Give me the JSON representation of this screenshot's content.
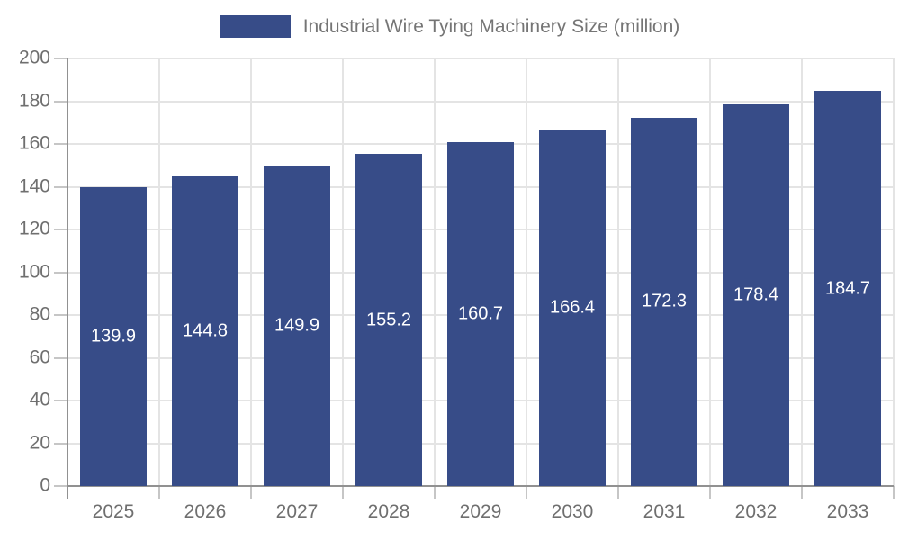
{
  "legend": {
    "label": "Industrial Wire Tying Machinery Size (million)"
  },
  "chart_data": {
    "type": "bar",
    "title": "Industrial Wire Tying Machinery Size (million)",
    "series_name": "Industrial Wire Tying Machinery Size (million)",
    "categories": [
      "2025",
      "2026",
      "2027",
      "2028",
      "2029",
      "2030",
      "2031",
      "2032",
      "2033"
    ],
    "values": [
      139.9,
      144.8,
      149.9,
      155.2,
      160.7,
      166.4,
      172.3,
      178.4,
      184.7
    ],
    "value_labels": [
      "139.9",
      "144.8",
      "149.9",
      "155.2",
      "160.7",
      "166.4",
      "172.3",
      "178.4",
      "184.7"
    ],
    "xlabel": "",
    "ylabel": "",
    "ylim": [
      0,
      200
    ],
    "ytick_step": 20,
    "yticks": [
      0,
      20,
      40,
      60,
      80,
      100,
      120,
      140,
      160,
      180,
      200
    ],
    "grid": true,
    "legend_position": "top"
  },
  "colors": {
    "bar": "#374c88",
    "bar_value_text": "#ffffff",
    "axis_line": "#919191",
    "tick": "#c6c6c6",
    "gridline": "#e4e4e4",
    "axis_text": "#6f6f6f",
    "legend_text": "#757575",
    "background": "#ffffff"
  }
}
